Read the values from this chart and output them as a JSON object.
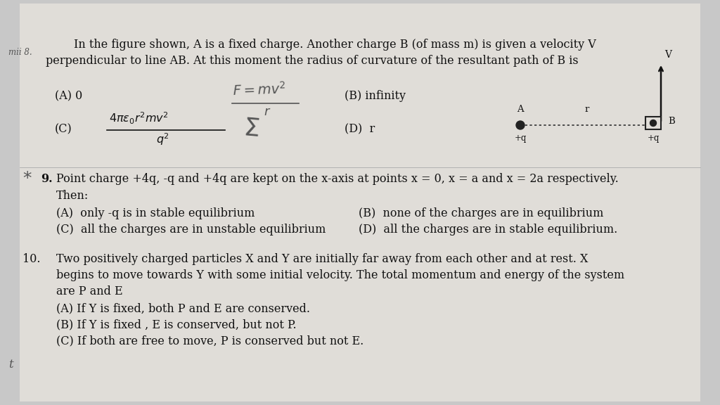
{
  "bg_color": "#c8c8c8",
  "page_color": "#e0ddd8",
  "text_color": "#111111",
  "gray_text": "#444444",
  "handwritten_color": "#555555",
  "q8_line1": "In the figure shown, A is a fixed charge. Another charge B (of mass m) is given a velocity V",
  "q8_line2": "perpendicular to line AB. At this moment the radius of curvature of the resultant path of B is",
  "q9_line1": "Point charge +4q, -q and +4q are kept on the x-axis at points x = 0, x = a and x = 2a respectively.",
  "q9_line2": "Then:",
  "q10_line1": "Two positively charged particles X and Y are initially far away from each other and at rest. X",
  "q10_line2": "begins to move towards Y with some initial velocity. The total momentum and energy of the system",
  "q10_line3": "are P and E",
  "opt10a": "(A) If Y is fixed, both P and E are conserved.",
  "opt10b": "(B) If Y is fixed , E is conserved, but not P.",
  "opt10c": "(C) If both are free to move, P is conserved but not E."
}
